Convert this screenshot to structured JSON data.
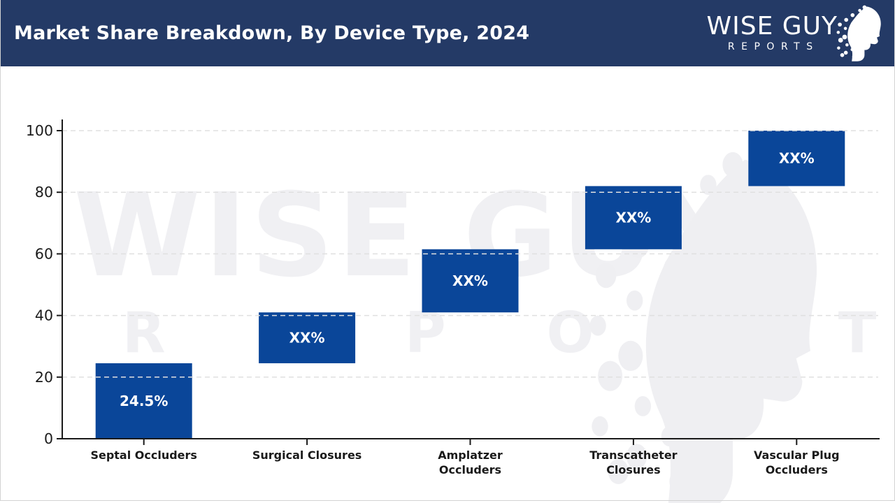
{
  "header": {
    "title": "Market Share Breakdown, By Device Type, 2024"
  },
  "logo": {
    "primary": "WISE GUY",
    "secondary": "REPORTS"
  },
  "icons": {
    "brand_face": "dotted-face-profile",
    "watermark_face": "dotted-face-profile"
  },
  "watermark": {
    "primary": "WISE GUY",
    "secondary": "R E P O R T S"
  },
  "colors": {
    "header_bg": "#243a66",
    "bar": "#0a4699",
    "bar_label": "#ffffff",
    "grid": "#e0e0e0",
    "axis": "#1a1a1a",
    "tick_label": "#1a1a1a",
    "watermark": "#f0f0f3",
    "card_border": "#d3d3d3"
  },
  "chart_data": {
    "type": "bar",
    "subtype": "waterfall",
    "title": "Market Share Breakdown, By Device Type, 2024",
    "xlabel": "",
    "ylabel": "",
    "ylim": [
      0,
      100
    ],
    "yticks": [
      0,
      20,
      40,
      60,
      80,
      100
    ],
    "grid": "horizontal-dashed",
    "legend": "none",
    "categories": [
      "Septal Occluders",
      "Surgical Closures",
      "Amplatzer Occluders",
      "Transcatheter Closures",
      "Vascular Plug Occluders"
    ],
    "bars": [
      {
        "category": "Septal Occluders",
        "category_lines": [
          "Septal Occluders"
        ],
        "start": 0,
        "end": 24.5,
        "value_label": "24.5%"
      },
      {
        "category": "Surgical Closures",
        "category_lines": [
          "Surgical Closures"
        ],
        "start": 24.5,
        "end": 41,
        "value_label": "XX%"
      },
      {
        "category": "Amplatzer Occluders",
        "category_lines": [
          "Amplatzer",
          "Occluders"
        ],
        "start": 41,
        "end": 61.5,
        "value_label": "XX%"
      },
      {
        "category": "Transcatheter Closures",
        "category_lines": [
          "Transcatheter",
          "Closures"
        ],
        "start": 61.5,
        "end": 82,
        "value_label": "XX%"
      },
      {
        "category": "Vascular Plug Occluders",
        "category_lines": [
          "Vascular Plug",
          "Occluders"
        ],
        "start": 82,
        "end": 100,
        "value_label": "XX%"
      }
    ]
  }
}
